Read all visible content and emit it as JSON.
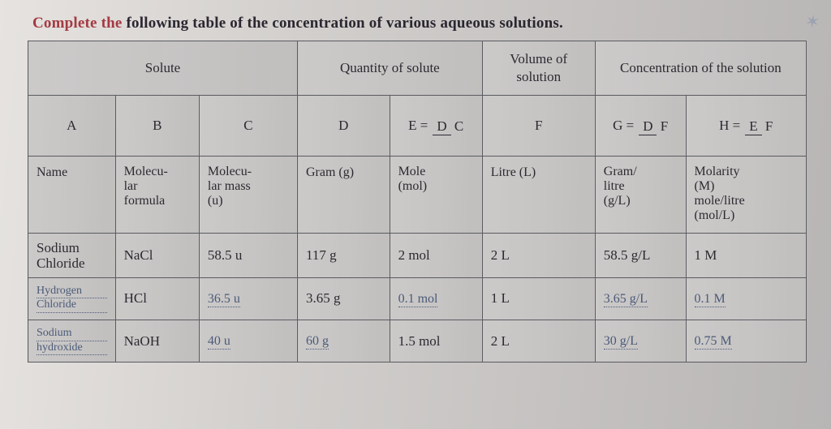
{
  "title": {
    "lead": "Complete the",
    "bold": "following table of the concentration of various aqueous solutions."
  },
  "groupHeaders": {
    "solute": "Solute",
    "quantity": "Quantity of solute",
    "volume": "Volume of solution",
    "concentration": "Concentration of the solution"
  },
  "cols": {
    "A": "A",
    "B": "B",
    "C": "C",
    "D": "D",
    "E_lhs": "E =",
    "E_num": "D",
    "E_den": "C",
    "F": "F",
    "G_lhs": "G =",
    "G_num": "D",
    "G_den": "F",
    "H_lhs": "H =",
    "H_num": "E",
    "H_den": "F"
  },
  "desc": {
    "A": "Name",
    "B1": "Molecu-",
    "B2": "lar",
    "B3": "formula",
    "C1": "Molecu-",
    "C2": "lar mass",
    "C3": "(u)",
    "D": "Gram (g)",
    "E1": "Mole",
    "E2": "(mol)",
    "F": "Litre (L)",
    "G1": "Gram/",
    "G2": "litre",
    "G3": "(g/L)",
    "H1": "Molarity",
    "H2": "(M)",
    "H3": "mole/litre",
    "H4": "(mol/L)"
  },
  "rows": [
    {
      "A1": "Sodium",
      "A2": "Chloride",
      "B": "NaCl",
      "C": "58.5 u",
      "D": "117 g",
      "E": "2 mol",
      "F": "2 L",
      "G": "58.5 g/L",
      "H": "1 M",
      "hand": {}
    },
    {
      "A_hand1": "Hydrogen",
      "A_hand2": "Chloride",
      "B": "HCl",
      "hand": {
        "C": "36.5 u",
        "E": "0.1 mol",
        "G": "3.65 g/L",
        "H": "0.1 M"
      },
      "D": "3.65 g",
      "F": "1 L"
    },
    {
      "A_hand1": "Sodium",
      "A_hand2": "hydroxide",
      "B": "NaOH",
      "hand": {
        "C": "40 u",
        "D": "60 g",
        "G": "30 g/L",
        "H": "0.75 M"
      },
      "E": "1.5 mol",
      "F": "2 L"
    }
  ],
  "cornerMark": "✶"
}
